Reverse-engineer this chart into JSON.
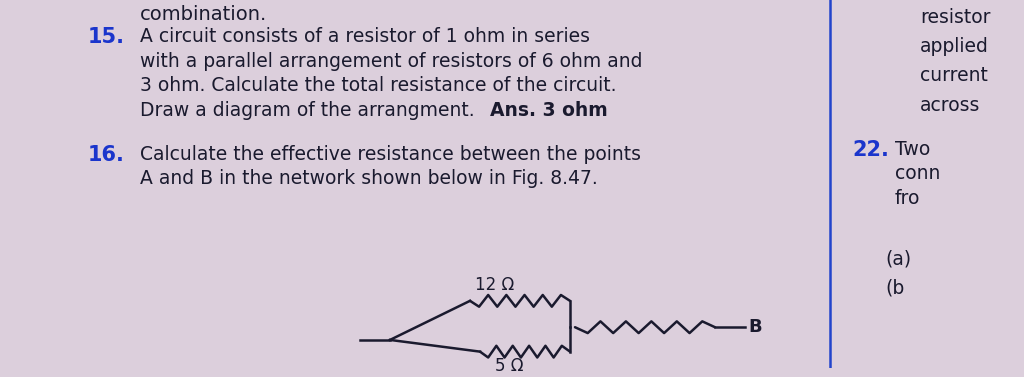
{
  "bg_color": "#dccfdc",
  "text_color": "#1a1a2e",
  "blue_color": "#1a35cc",
  "divider_color": "#2244cc",
  "title_top": "combination.",
  "q15_number": "15.",
  "q15_line1": "A circuit consists of a resistor of 1 ohm in series",
  "q15_line2": "with a parallel arrangement of resistors of 6 ohm and",
  "q15_line3": "3 ohm. Calculate the total resistance of the circuit.",
  "q15_line4": "Draw a diagram of the arrangment.",
  "q15_ans": "Ans. 3 ohm",
  "q16_number": "16.",
  "q16_line1": "Calculate the effective resistance between the points",
  "q16_line2": "A and B in the network shown below in Fig. 8.47.",
  "right_col_lines": [
    "resistor",
    "applied",
    "current",
    "across"
  ],
  "q22_number": "22.",
  "q22_lines": [
    "Two",
    "conn",
    "fro"
  ],
  "right_bottom": [
    "(a)",
    "(b"
  ],
  "resistor_label": "12 Ω",
  "point_B": "B",
  "resistor_bottom_label": "5 Ω"
}
